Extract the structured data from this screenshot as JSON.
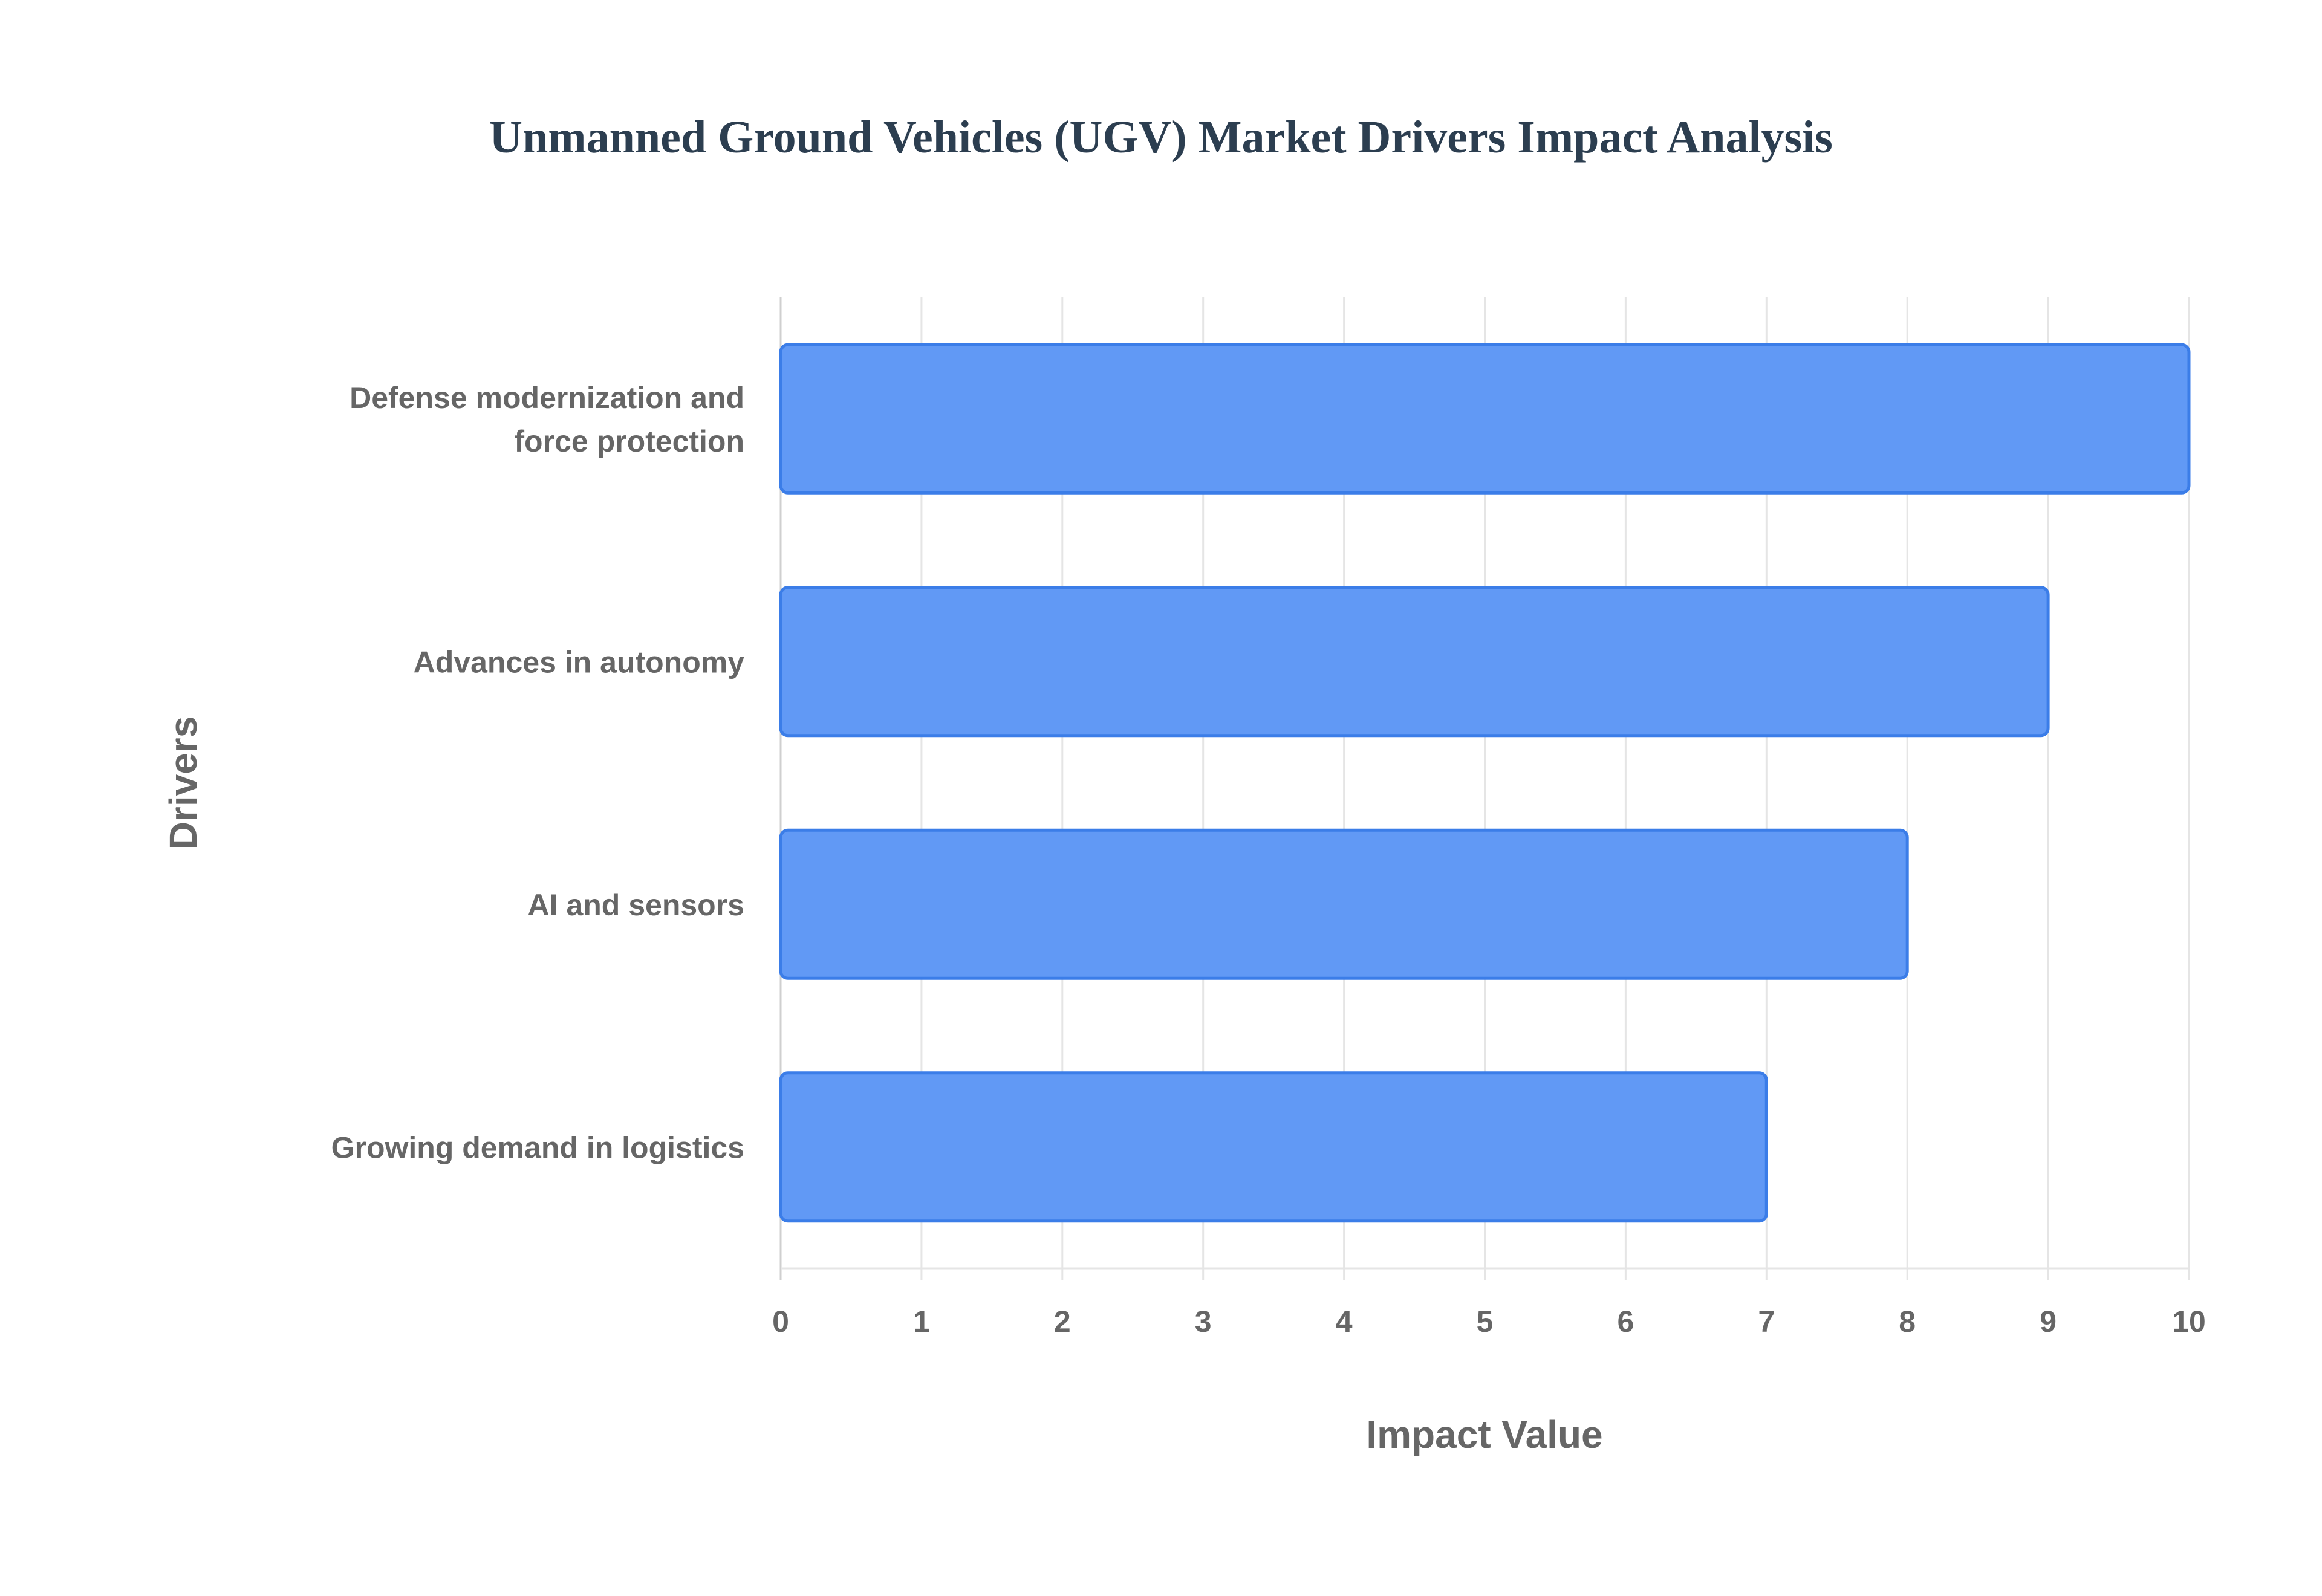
{
  "chart_data": {
    "type": "bar",
    "orientation": "horizontal",
    "title": "Unmanned Ground Vehicles (UGV) Market Drivers Impact Analysis",
    "xlabel": "Impact Value",
    "ylabel": "Drivers",
    "categories": [
      [
        "Defense modernization and",
        "force protection"
      ],
      [
        "Advances in autonomy"
      ],
      [
        "AI and sensors"
      ],
      [
        "Growing demand in logistics"
      ]
    ],
    "values": [
      10,
      9,
      8,
      7
    ],
    "xlim": [
      0,
      10
    ],
    "xticks": [
      "0",
      "1",
      "2",
      "3",
      "4",
      "5",
      "6",
      "7",
      "8",
      "9",
      "10"
    ],
    "grid": true,
    "legend": "none",
    "colors": {
      "bar_fill": "#6199f5",
      "bar_border": "#3b7de8",
      "title": "#2c3e50",
      "text": "#666666",
      "grid": "#e5e5e5"
    }
  }
}
